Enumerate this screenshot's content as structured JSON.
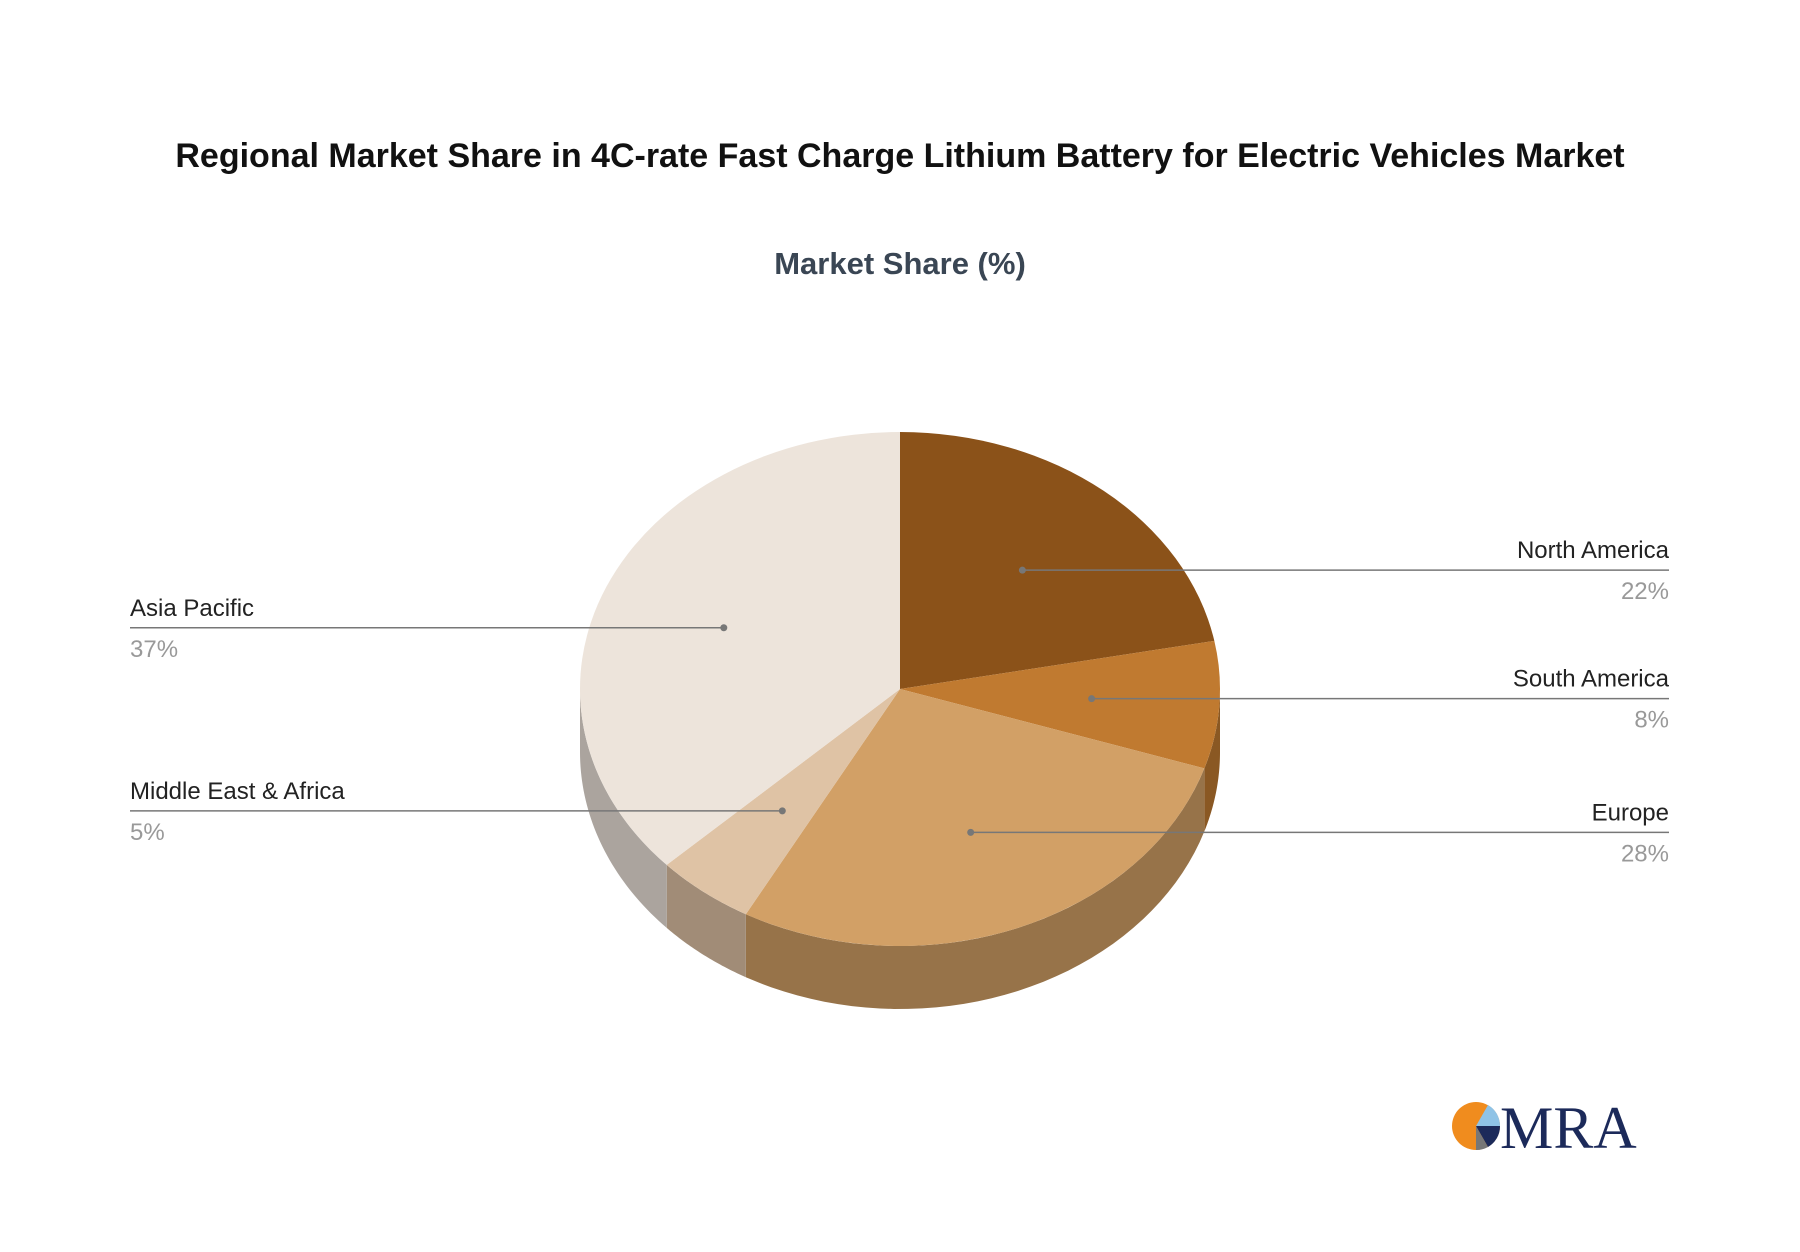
{
  "chart_data": {
    "type": "pie3d",
    "title": "Regional Market Share in 4C-rate Fast Charge Lithium Battery for Electric Vehicles Market",
    "subtitle": "Market Share (%)",
    "categories": [
      "North America",
      "South America",
      "Europe",
      "Middle East & Africa",
      "Asia Pacific"
    ],
    "values": [
      22,
      8,
      28,
      5,
      37
    ],
    "value_labels": [
      "22%",
      "8%",
      "28%",
      "5%",
      "37%"
    ],
    "colors": [
      "#8b5219",
      "#c07a30",
      "#d2a066",
      "#dfc3a5",
      "#ede4db"
    ]
  },
  "logo": "MRA"
}
